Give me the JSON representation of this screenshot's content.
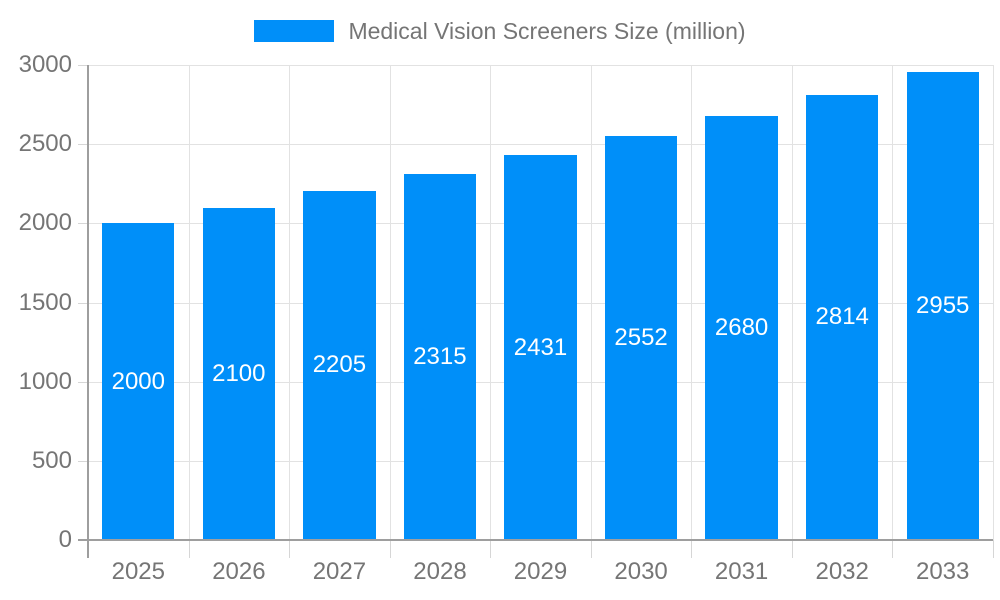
{
  "chart_data": {
    "type": "bar",
    "title": "Medical Vision Screeners Size (million)",
    "categories": [
      "2025",
      "2026",
      "2027",
      "2028",
      "2029",
      "2030",
      "2031",
      "2032",
      "2033"
    ],
    "values": [
      2000,
      2100,
      2205,
      2315,
      2431,
      2552,
      2680,
      2814,
      2955
    ],
    "xlabel": "",
    "ylabel": "",
    "ylim": [
      0,
      3000
    ],
    "y_ticks": [
      0,
      500,
      1000,
      1500,
      2000,
      2500,
      3000
    ],
    "grid": true,
    "legend_position": "top-center",
    "value_labels": "inside-center",
    "colors": {
      "bar": "#008FF9",
      "grid": "#E2E2E2",
      "tick": "#D6D6D6",
      "axis": "#9E9E9E",
      "text": "#757575",
      "value_label": "#FFFFFF",
      "background": "#FFFFFF"
    }
  }
}
